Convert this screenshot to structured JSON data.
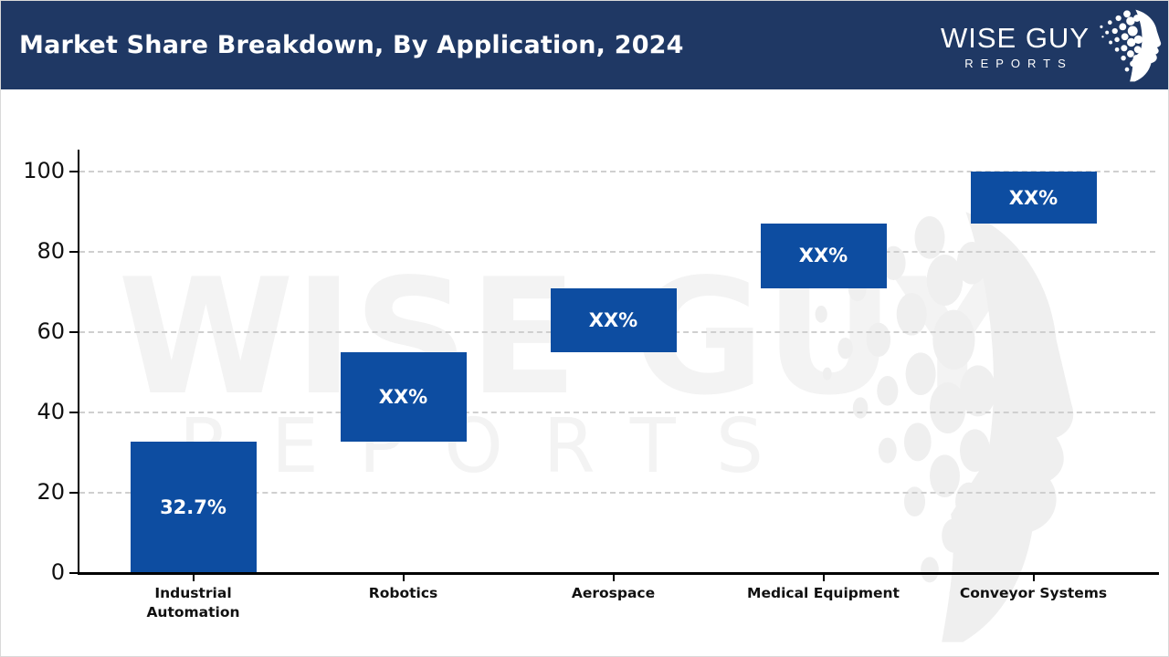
{
  "header": {
    "title": "Market Share Breakdown, By Application, 2024",
    "logo": {
      "line1": "WISE GUY",
      "line2": "REPORTS"
    }
  },
  "watermark": {
    "line1": "WISE GUY",
    "line2": "REPORTS"
  },
  "colors": {
    "header_bg": "#1f3864",
    "bar": "#0d4da1",
    "bar_label": "#ffffff",
    "gridline": "#cfcfcf",
    "axis": "#000000",
    "watermark": "#f3f3f3",
    "watermark_head": "#efefef"
  },
  "chart_data": {
    "type": "bar",
    "subtype": "waterfall",
    "title": "Market Share Breakdown, By Application, 2024",
    "xlabel": "",
    "ylabel": "",
    "categories": [
      "Industrial Automation",
      "Robotics",
      "Aerospace",
      "Medical Equipment",
      "Conveyor Systems"
    ],
    "segments": [
      {
        "category": "Industrial Automation",
        "lines": [
          "Industrial",
          "Automation"
        ],
        "start": 0,
        "end": 32.7,
        "label": "32.7%"
      },
      {
        "category": "Robotics",
        "lines": [
          "Robotics"
        ],
        "start": 32.7,
        "end": 55,
        "label": "XX%"
      },
      {
        "category": "Aerospace",
        "lines": [
          "Aerospace"
        ],
        "start": 55,
        "end": 71,
        "label": "XX%"
      },
      {
        "category": "Medical Equipment",
        "lines": [
          "Medical Equipment"
        ],
        "start": 71,
        "end": 87,
        "label": "XX%"
      },
      {
        "category": "Conveyor Systems",
        "lines": [
          "Conveyor Systems"
        ],
        "start": 87,
        "end": 100,
        "label": "XX%"
      }
    ],
    "yticks": [
      0,
      20,
      40,
      60,
      80,
      100
    ],
    "ylim": [
      0,
      105.5
    ],
    "grid": "horizontal-dashed",
    "legend": "none",
    "bar_color": "#0d4da1",
    "label_color": "#ffffff"
  }
}
